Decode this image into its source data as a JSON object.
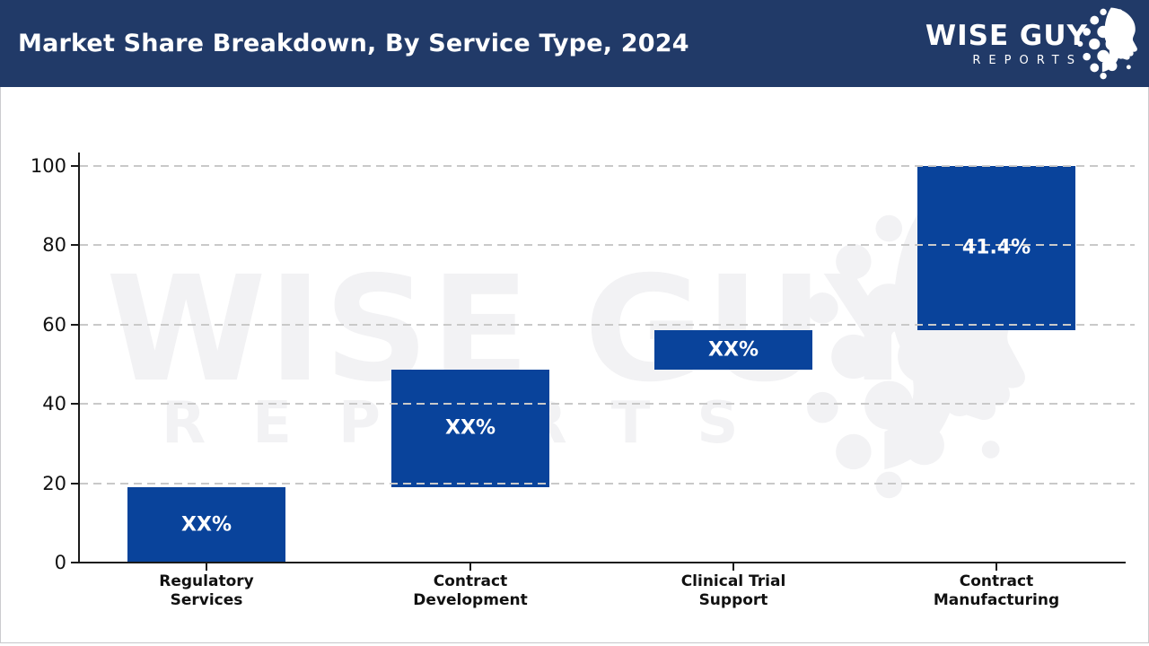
{
  "header": {
    "title": "Market Share Breakdown, By Service Type, 2024",
    "brand": {
      "name_top": "WISE GUY",
      "name_bottom": "REPORTS"
    },
    "bg_color": "#213A68"
  },
  "watermark": {
    "text_top": "WISE GUY",
    "text_bottom": "REPORTS"
  },
  "chart_data": {
    "type": "bar",
    "variant": "waterfall",
    "title": "Market Share Breakdown, By Service Type, 2024",
    "xlabel": "",
    "ylabel": "",
    "ylim": [
      0,
      100
    ],
    "yticks": [
      0,
      20,
      40,
      60,
      80,
      100
    ],
    "grid": {
      "horizontal": true,
      "style": "dashed",
      "drawn_above_bars": true,
      "color": "#c9c9c9"
    },
    "legend": null,
    "bar_color": "#09439B",
    "categories": [
      "Regulatory Services",
      "Contract Development",
      "Clinical Trial Support",
      "Contract Manufacturing"
    ],
    "category_label_lines": [
      [
        "Regulatory",
        "Services"
      ],
      [
        "Contract",
        "Development"
      ],
      [
        "Clinical Trial",
        "Support"
      ],
      [
        "Contract",
        "Manufacturing"
      ]
    ],
    "segments": [
      {
        "category": "Regulatory Services",
        "start": 0.0,
        "end": 19.0,
        "value": 19.0,
        "label": "XX%"
      },
      {
        "category": "Contract Development",
        "start": 19.0,
        "end": 48.7,
        "value": 29.7,
        "label": "XX%"
      },
      {
        "category": "Clinical Trial Support",
        "start": 48.7,
        "end": 58.6,
        "value": 9.9,
        "label": "XX%"
      },
      {
        "category": "Contract Manufacturing",
        "start": 58.6,
        "end": 100.0,
        "value": 41.4,
        "label": "41.4%"
      }
    ]
  }
}
